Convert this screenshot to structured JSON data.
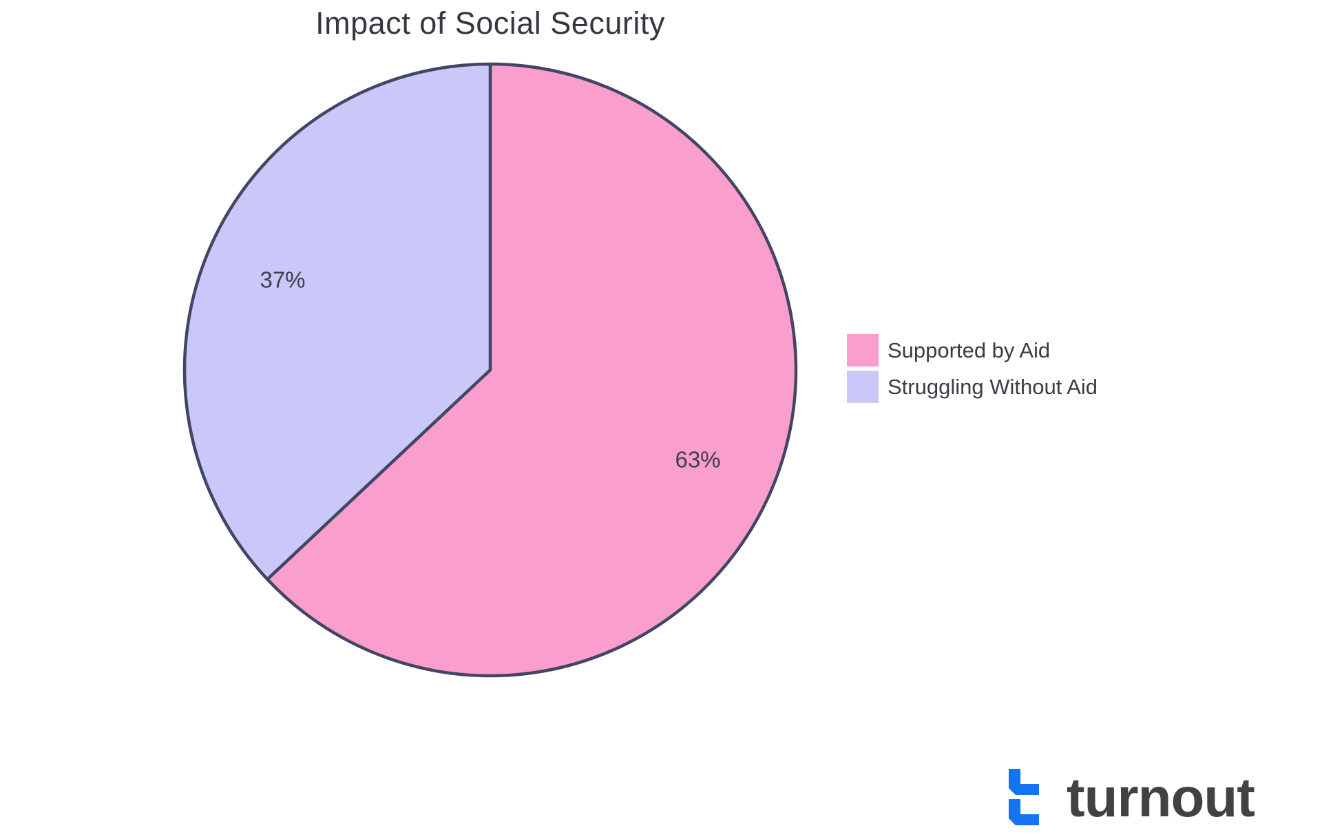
{
  "title": "Impact of Social Security",
  "chart_data": {
    "type": "pie",
    "title": "Impact of Social Security",
    "slices": [
      {
        "label": "Supported by Aid",
        "value": 63,
        "pct_label": "63%",
        "color": "#FA9ECD"
      },
      {
        "label": "Struggling Without Aid",
        "value": 37,
        "pct_label": "37%",
        "color": "#C9C8F9"
      }
    ],
    "start_angle": "top",
    "direction": "clockwise",
    "legend_position": "right",
    "stroke_color": "#424563",
    "stroke_width": 4.5,
    "label_color": "#3f4048"
  },
  "logo": {
    "text": "turnout",
    "icon_color": "#1473F0",
    "text_color": "#424242"
  }
}
